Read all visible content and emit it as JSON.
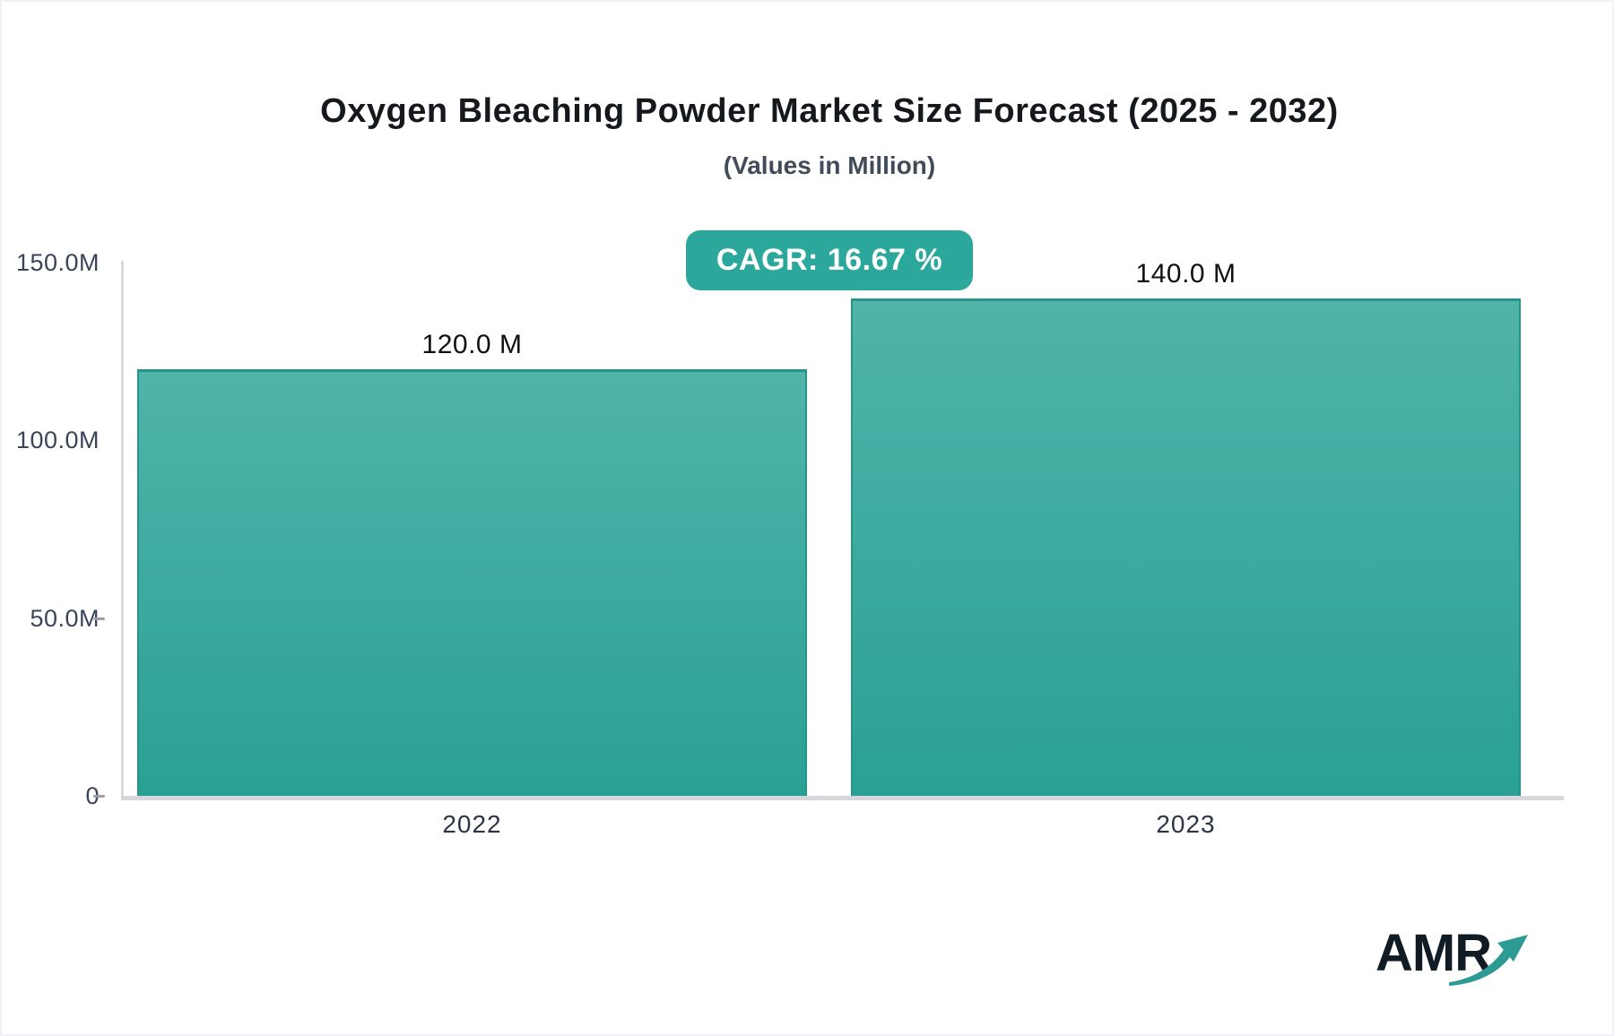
{
  "page": {
    "background": "#ffffff",
    "border_color": "#f0f2f5"
  },
  "chart_data": {
    "type": "bar",
    "title": "Oxygen Bleaching Powder Market Size Forecast (2025 - 2032)",
    "subtitle": "(Values in Million)",
    "categories": [
      "2022",
      "2023"
    ],
    "values": [
      120,
      140
    ],
    "value_labels": [
      "120.0 M",
      "140.0 M"
    ],
    "unit": "Million",
    "ylim": [
      0,
      150
    ],
    "yticks": [
      {
        "value": 150,
        "label": "150.0M",
        "tick_mark": false
      },
      {
        "value": 100,
        "label": "100.0M",
        "tick_mark": false
      },
      {
        "value": 50,
        "label": "50.0M",
        "tick_mark": true
      },
      {
        "value": 0,
        "label": "0",
        "tick_mark": true
      }
    ],
    "grid": false,
    "legend": null
  },
  "badge": {
    "text": "CAGR: 16.67 %",
    "background": "#2ba89b",
    "text_color": "#ffffff"
  },
  "colors": {
    "title": "#15181c",
    "subtitle": "#414b59",
    "axis_label": "#39445a",
    "category_label": "#2c3547",
    "value_label": "#0e1114",
    "axis_line": "#d7dade",
    "baseline": "#d4d7dc",
    "tick": "#9aa0aa",
    "bar_top": "#50b4a9",
    "bar_bottom": "#2aa095",
    "bar_border": "#27948a",
    "logo_text": "#101b24",
    "logo_arrow": "#2e9a94"
  },
  "logo": {
    "text": "AMR",
    "arrow_icon": "trending-up-arrow"
  }
}
